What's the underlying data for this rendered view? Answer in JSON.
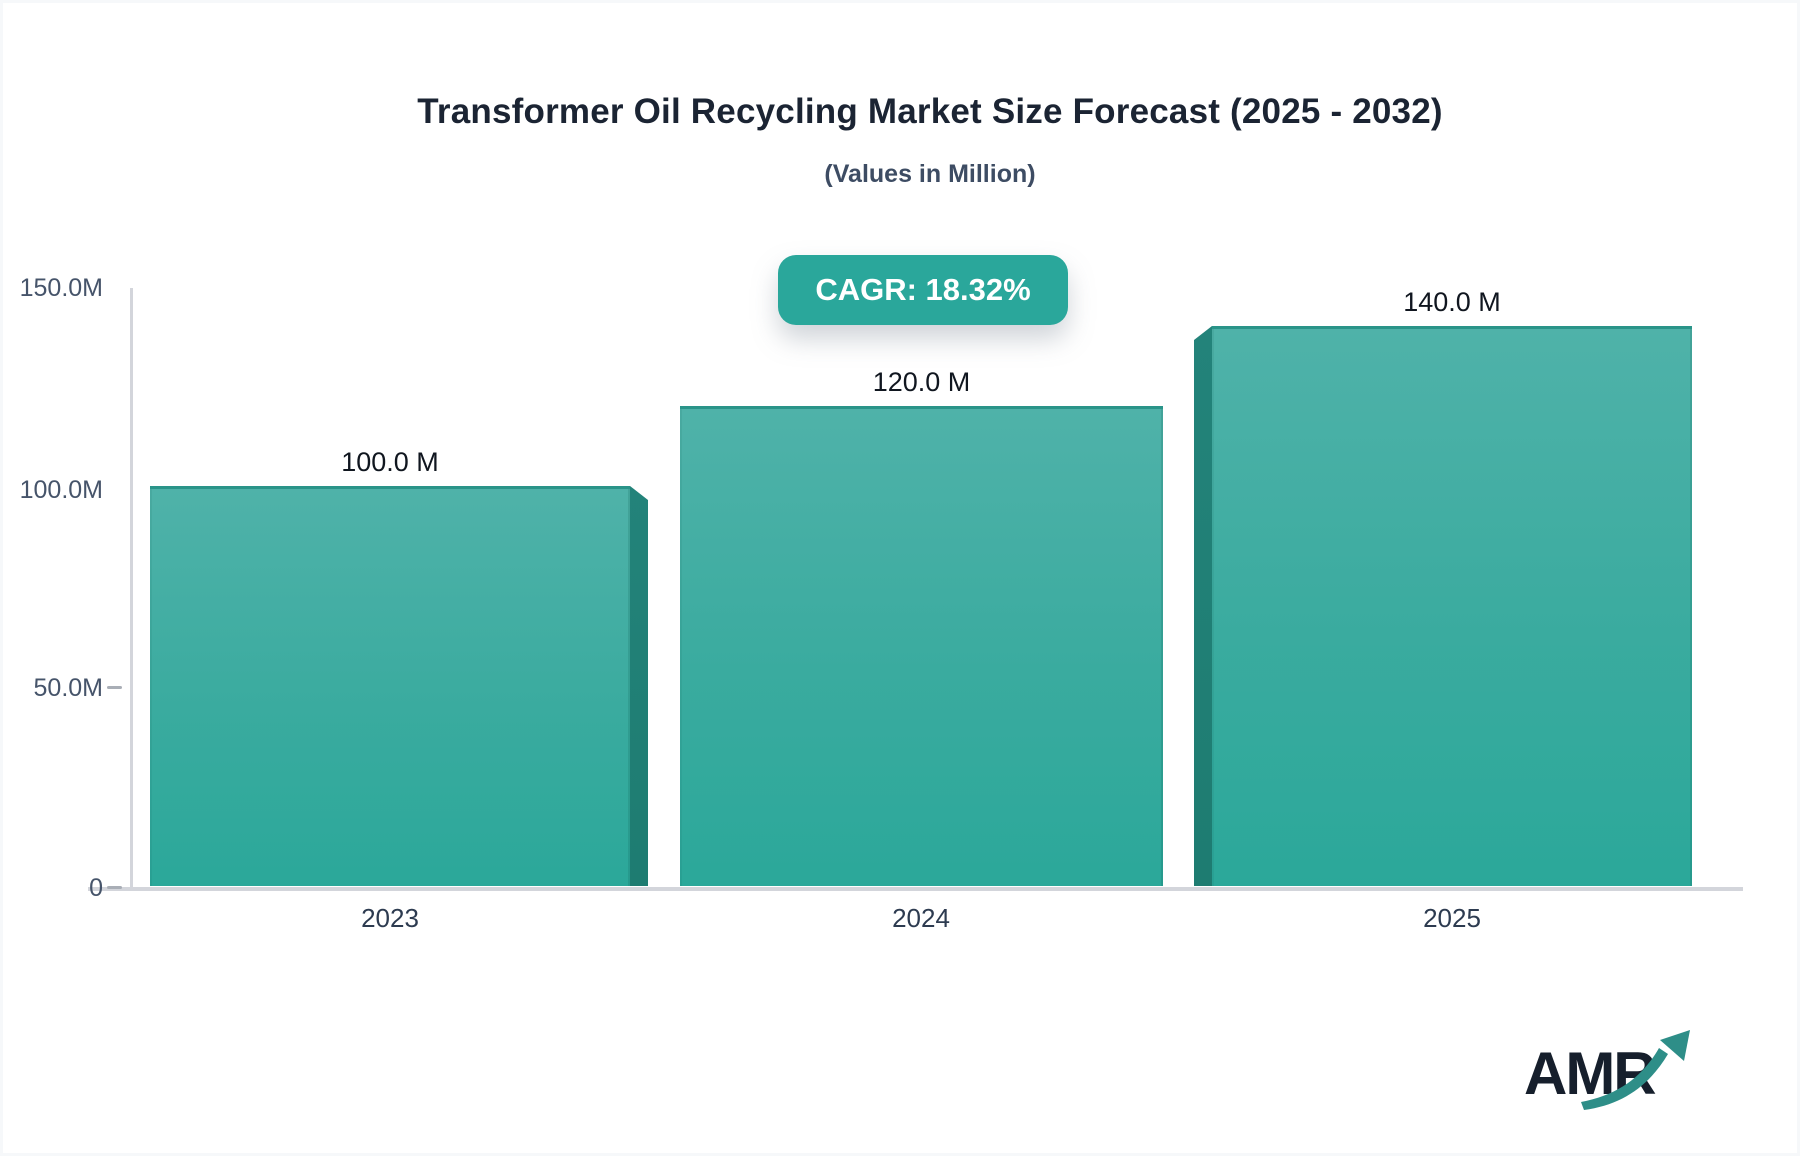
{
  "header": {
    "title": "Transformer Oil Recycling Market Size Forecast (2025 - 2032)",
    "subtitle": "(Values in Million)"
  },
  "badge": {
    "label": "CAGR: 18.32%",
    "color": "#2aa79b"
  },
  "chart_data": {
    "type": "bar",
    "title": "Transformer Oil Recycling Market Size Forecast (2025 - 2032)",
    "subtitle": "(Values in Million)",
    "unit": "Million",
    "categories": [
      "2023",
      "2024",
      "2025"
    ],
    "values": [
      100.0,
      120.0,
      140.0
    ],
    "value_labels": [
      "100.0 M",
      "120.0 M",
      "140.0 M"
    ],
    "cagr_label": "CAGR: 18.32%",
    "ylim": [
      0,
      150
    ],
    "y_ticks": [
      "150.0M",
      "100.0M",
      "50.0M",
      "0"
    ],
    "xlabel": "",
    "ylabel": "",
    "grid": false,
    "legend_position": "none",
    "bar_color_top": "#4fb2a9",
    "bar_color_bottom": "#2ba89a",
    "bar_side_color": "#1e7c71",
    "axis_color": "#d3d5db"
  },
  "logo": {
    "text": "AMR",
    "arrow_color": "#2e8e88",
    "text_color": "#161f2c"
  }
}
